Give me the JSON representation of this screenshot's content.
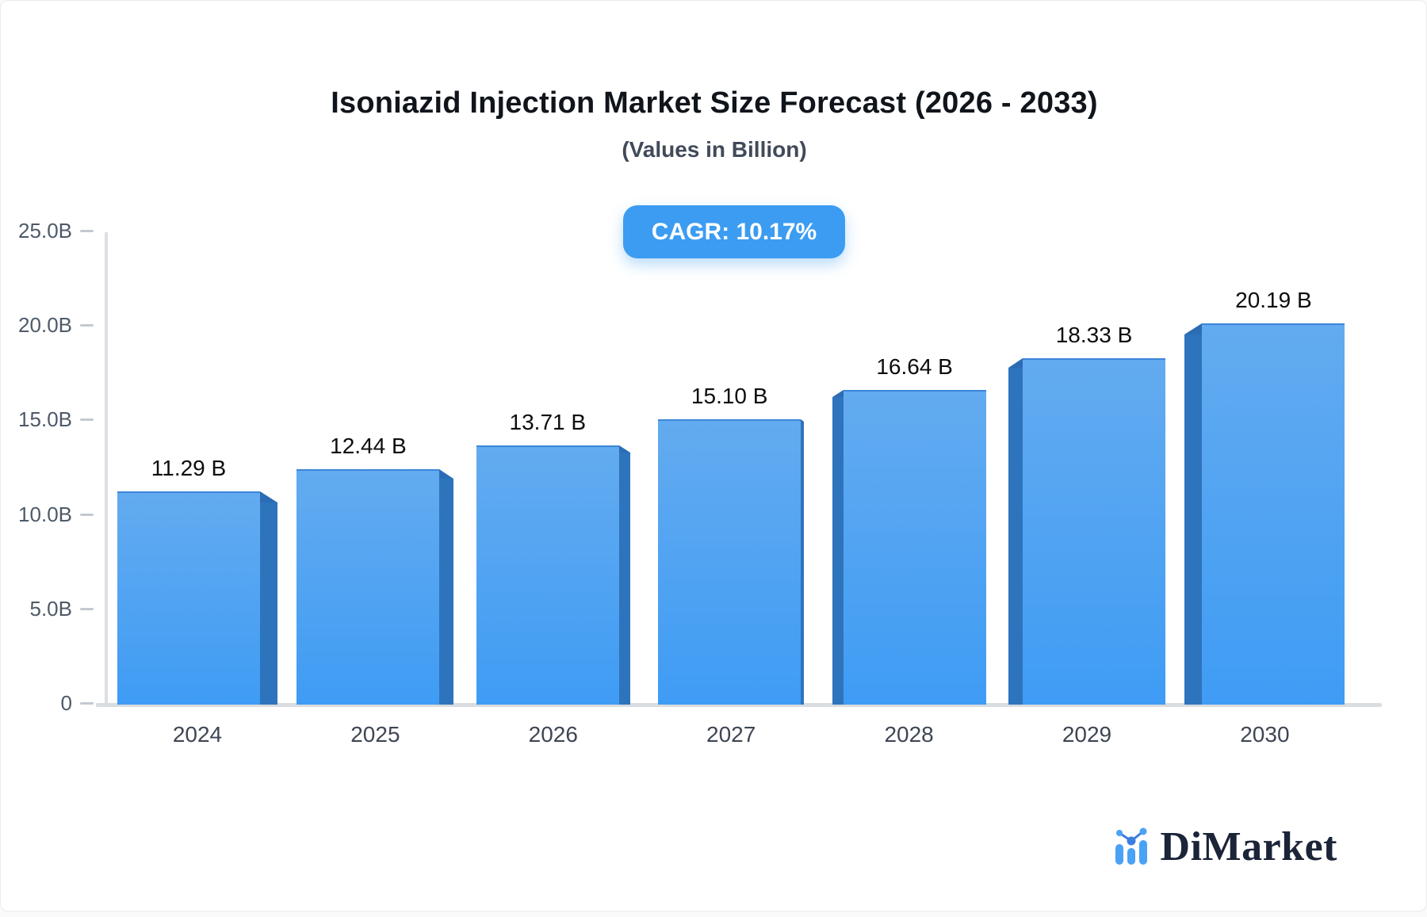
{
  "page": {
    "background": "#fafafa",
    "card_background": "#ffffff"
  },
  "header": {
    "title": "Isoniazid Injection Market Size Forecast (2026 - 2033)",
    "subtitle": "(Values in Billion)"
  },
  "badge": {
    "label": "CAGR: 10.17%",
    "color": "#3b9cf2",
    "text_color": "#ffffff"
  },
  "chart_data": {
    "type": "bar",
    "title": "Isoniazid Injection Market Size Forecast (2026 - 2033)",
    "subtitle": "(Values in Billion)",
    "xlabel": "",
    "ylabel": "",
    "unit": "Billion",
    "categories": [
      "2024",
      "2025",
      "2026",
      "2027",
      "2028",
      "2029",
      "2030"
    ],
    "values": [
      11.29,
      12.44,
      13.71,
      15.1,
      16.64,
      18.33,
      20.19
    ],
    "bar_labels": [
      "11.29 B",
      "12.44 B",
      "13.71 B",
      "15.10 B",
      "16.64 B",
      "18.33 B",
      "20.19 B"
    ],
    "ylim": [
      0,
      25
    ],
    "yticks": [
      {
        "value": 25,
        "label": "25.0B"
      },
      {
        "value": 20,
        "label": "20.0B"
      },
      {
        "value": 15,
        "label": "15.0B"
      },
      {
        "value": 10,
        "label": "10.0B"
      },
      {
        "value": 5,
        "label": "5.0B"
      },
      {
        "value": 0,
        "label": "0"
      }
    ],
    "grid": false,
    "legend": false,
    "style_3d": true,
    "colors": {
      "bar_top": "#63abf0",
      "bar_bottom": "#3f9cf4",
      "bar_side": "#2e74bd",
      "bar_bevel": "#2b6cb4",
      "axis_line": "#d9dce0",
      "tick_text": "#4e5a68",
      "category_text": "#3e4654",
      "value_text": "#0c0d0e"
    }
  },
  "branding": {
    "name": "DiMarket",
    "icon": "bar-line-chart-icon",
    "icon_bar_color": "#4aa2f5",
    "icon_dot_color": "#3b7de0",
    "text_color": "#1b2438"
  }
}
